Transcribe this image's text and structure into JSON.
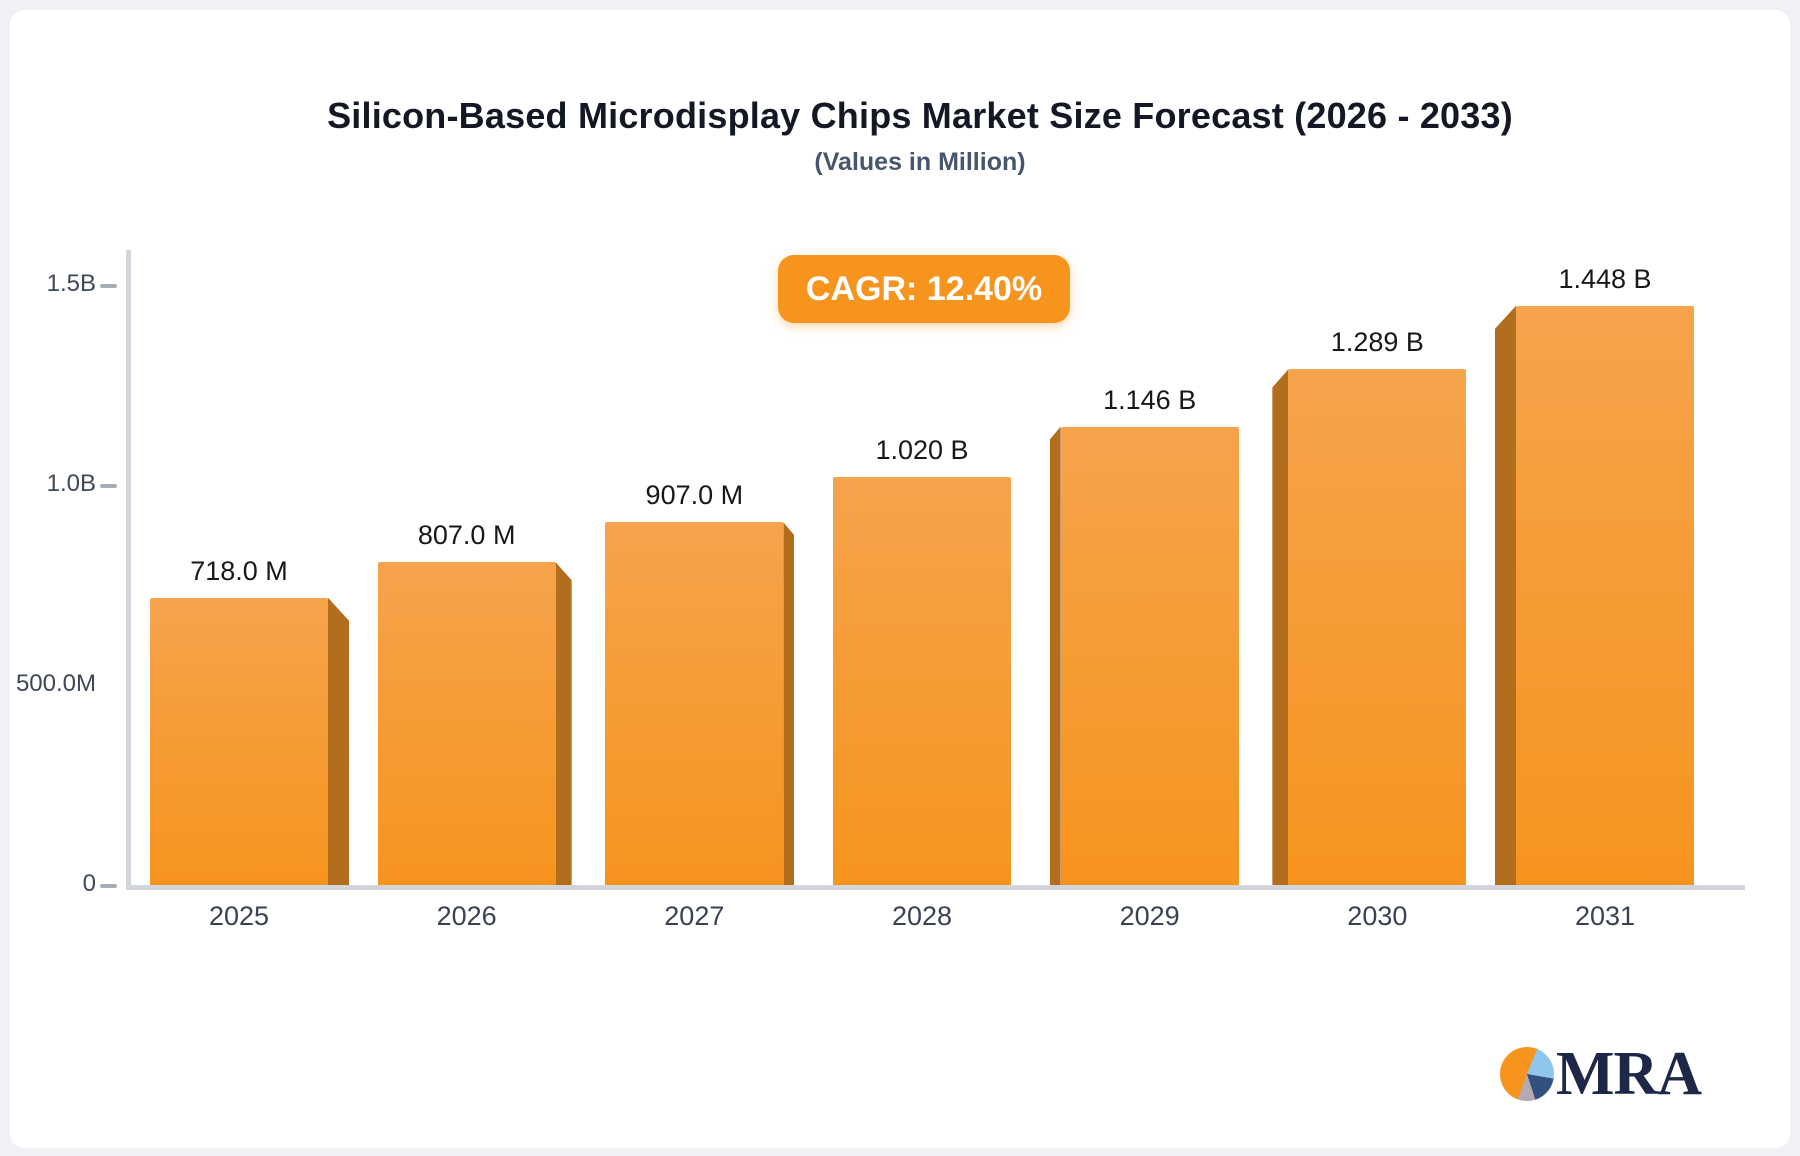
{
  "page": {
    "background": "#f0f1f4",
    "card_background": "#ffffff"
  },
  "header": {
    "title": "Silicon-Based Microdisplay Chips Market Size Forecast (2026 - 2033)",
    "subtitle": "(Values in Million)"
  },
  "badge": {
    "label": "CAGR: 12.40%",
    "background": "#f7941e",
    "text_color": "#ffffff"
  },
  "chart_data": {
    "type": "bar",
    "title": "Silicon-Based Microdisplay Chips Market Size Forecast (2026 - 2033)",
    "subtitle": "(Values in Million)",
    "unit": "Million USD",
    "categories": [
      "2025",
      "2026",
      "2027",
      "2028",
      "2029",
      "2030",
      "2031"
    ],
    "values": [
      718,
      807,
      907,
      1020,
      1146,
      1289,
      1448
    ],
    "data_labels": [
      "718.0 M",
      "807.0 M",
      "907.0 M",
      "1.020 B",
      "1.146 B",
      "1.289 B",
      "1.448 B"
    ],
    "cagr": "12.40%",
    "ylim": [
      0,
      1500
    ],
    "yticks": [
      {
        "label": "1.5B",
        "value": 1500,
        "dash": true
      },
      {
        "label": "1.0B",
        "value": 1000,
        "dash": true
      },
      {
        "label": "500.0M",
        "value": 500,
        "dash": false
      },
      {
        "label": "0",
        "value": 0,
        "dash": true
      }
    ],
    "grid": false,
    "legend": "none",
    "style": {
      "bar_color_top": "#f5a34c",
      "bar_color_bottom": "#f7941e",
      "bar_side_color": "#b26d1d",
      "axis_color": "#d2d5db",
      "perspective": "center-vanishing-3d"
    }
  },
  "logo": {
    "text": "MRA",
    "text_color": "#1d2747",
    "pie_colors": {
      "orange": "#f7941e",
      "light_blue": "#8ec6ec",
      "navy": "#33517f",
      "gray": "#b3abb1"
    }
  }
}
